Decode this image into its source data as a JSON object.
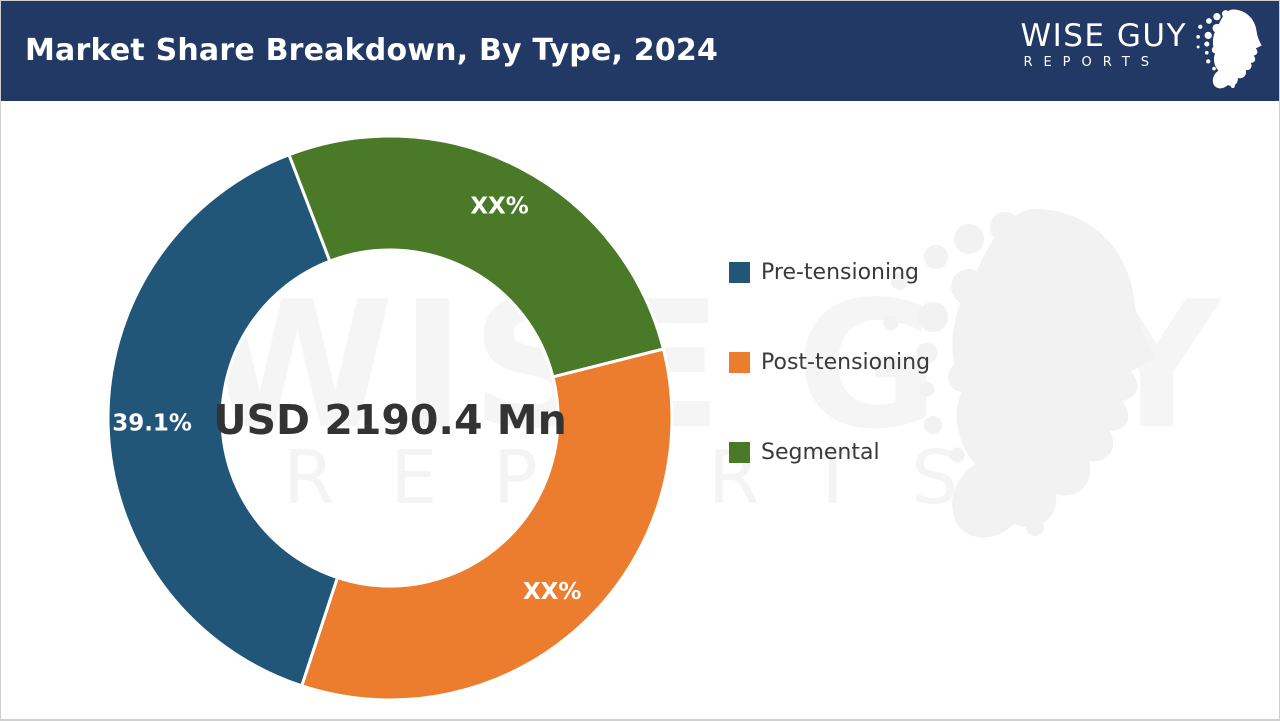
{
  "header": {
    "title": "Market Share Breakdown, By Type, 2024",
    "logo": {
      "name": "WISE GUY",
      "subtitle": "REPORTS"
    }
  },
  "watermark": {
    "line1": "WISE GUY",
    "line2": "REPORTS"
  },
  "chart_data": {
    "type": "pie",
    "donut": true,
    "title": "Market Share Breakdown, By Type, 2024",
    "center_label": "USD 2190.4 Mn",
    "start_angle_deg": -21,
    "outer_radius": 282,
    "inner_radius": 168,
    "label_radius": 238,
    "legend_position": "right",
    "slices": [
      {
        "name": "Segmental",
        "display_label": "XX%",
        "value_pct": 26.9,
        "color": "#4a7a28"
      },
      {
        "name": "Post-tensioning",
        "display_label": "XX%",
        "value_pct": 34.0,
        "color": "#ec7d2f"
      },
      {
        "name": "Pre-tensioning",
        "display_label": "39.1%",
        "value_pct": 39.1,
        "color": "#215679"
      }
    ]
  },
  "legend": {
    "items": [
      {
        "label": "Pre-tensioning",
        "color": "#215679"
      },
      {
        "label": "Post-tensioning",
        "color": "#ec7d2f"
      },
      {
        "label": "Segmental",
        "color": "#4a7a28"
      }
    ]
  }
}
